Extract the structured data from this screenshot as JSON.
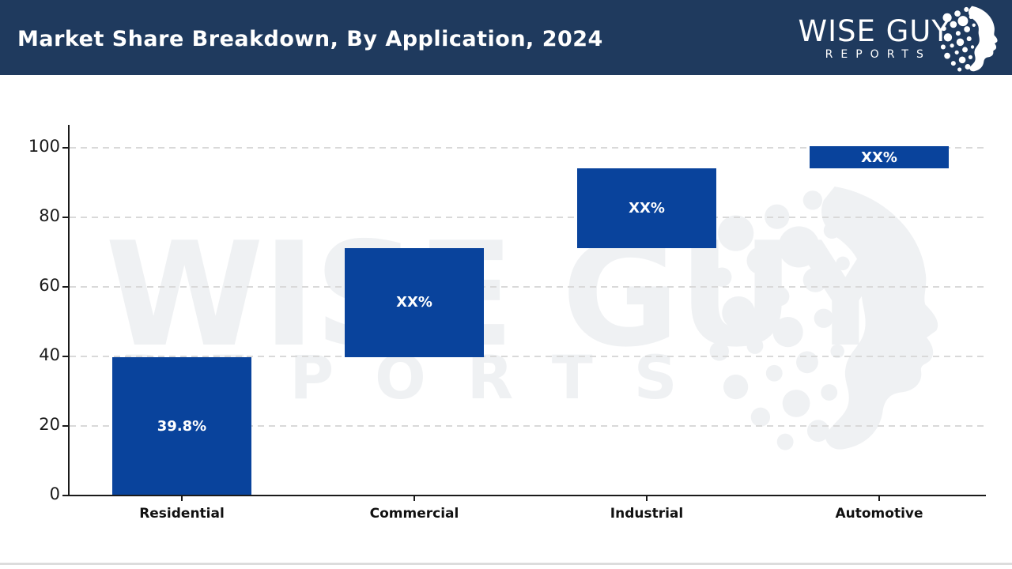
{
  "header": {
    "title": "Market Share Breakdown, By Application, 2024",
    "background_color": "#1f3a5e",
    "logo": {
      "wordmark": "WISE GUY",
      "subtext": "REPORTS"
    }
  },
  "watermark": {
    "line1": "WISE GUY",
    "line2": "REPORTS"
  },
  "chart_data": {
    "type": "bar",
    "subtype": "waterfall",
    "title": "Market Share Breakdown, By Application, 2024",
    "categories": [
      "Residential",
      "Commercial",
      "Industrial",
      "Automotive"
    ],
    "segments": [
      {
        "category": "Residential",
        "start": 0,
        "end": 39.8,
        "label": "39.8%"
      },
      {
        "category": "Commercial",
        "start": 39.8,
        "end": 71.2,
        "label": "XX%"
      },
      {
        "category": "Industrial",
        "start": 71.2,
        "end": 94,
        "label": "XX%"
      },
      {
        "category": "Automotive",
        "start": 94,
        "end": 100.5,
        "label": "XX%"
      }
    ],
    "bar_color": "#09439c",
    "label_color": "#ffffff",
    "ylim": [
      0,
      107
    ],
    "yticks": [
      0,
      20,
      40,
      60,
      80,
      100
    ],
    "grid": {
      "axis": "y",
      "style": "dashed",
      "color": "#d9d9d9"
    },
    "axis_color": "#1a1a1a",
    "legend": "none",
    "xlabel": "",
    "ylabel": ""
  }
}
